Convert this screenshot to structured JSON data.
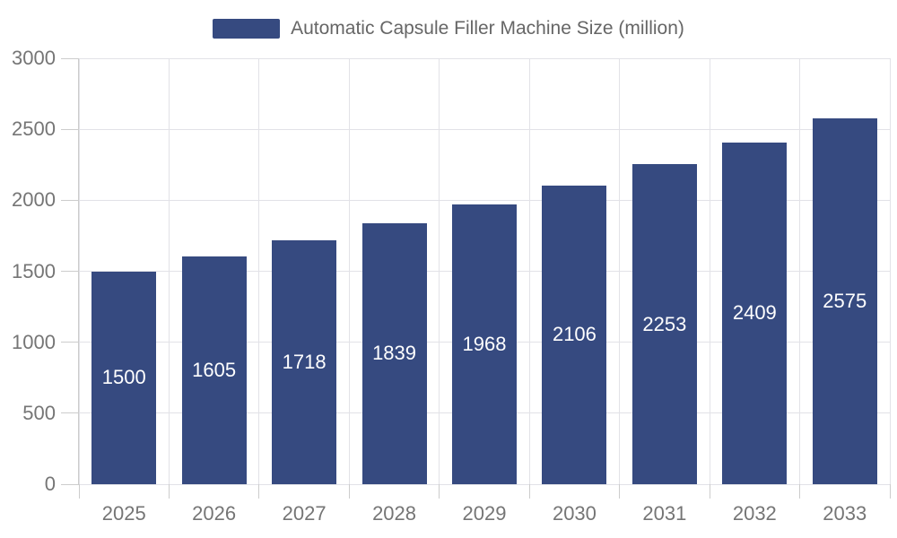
{
  "chart_data": {
    "type": "bar",
    "title": "Automatic Capsule Filler Machine Size (million)",
    "series_name": "Automatic Capsule Filler Machine Size (million)",
    "categories": [
      "2025",
      "2026",
      "2027",
      "2028",
      "2029",
      "2030",
      "2031",
      "2032",
      "2033"
    ],
    "values": [
      1500,
      1605,
      1718,
      1839,
      1968,
      2106,
      2253,
      2409,
      2575
    ],
    "xlabel": "",
    "ylabel": "",
    "ylim": [
      0,
      3000
    ],
    "y_ticks": [
      0,
      500,
      1000,
      1500,
      2000,
      2500,
      3000
    ],
    "grid": "on",
    "legend_position": "top",
    "value_labels": "inside-middle",
    "colors": {
      "bar": "#364a80",
      "value_label": "#ffffff",
      "axis_text": "#757575",
      "legend_text": "#666666",
      "gridline": "#e2e2e7",
      "axis_line": "#cccccc",
      "background": "#ffffff"
    }
  }
}
